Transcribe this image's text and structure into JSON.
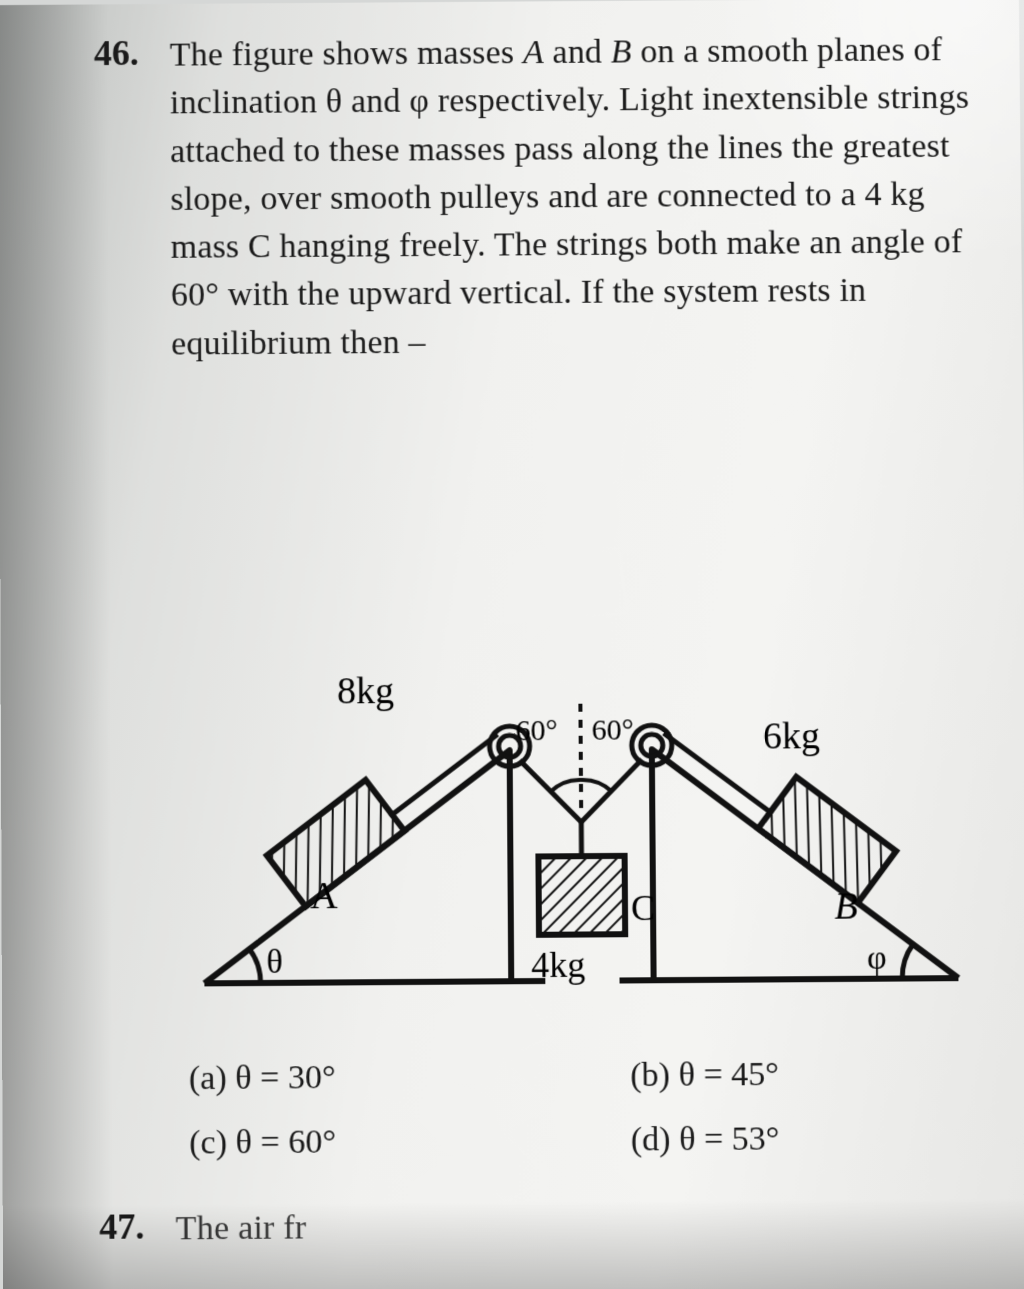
{
  "q46": {
    "number": "46.",
    "text_html": "The figure shows masses <span class=i>A</span> and <span class=i>B</span> on a smooth planes of inclination &theta; and &phi; respectively. Light inextensible strings attached to these masses pass along the lines the greatest slope, over smooth pulleys and are connected to a 4 kg mass C hanging freely. The strings both make an angle of 60&deg; with the upward vertical. If the system rests in equilibrium then &ndash;"
  },
  "figure": {
    "mass_left_label": "8kg",
    "mass_right_label": "6kg",
    "mass_center_label": "4kg",
    "pulley_angle_left": "60°",
    "pulley_angle_right": "60°",
    "block_left_letter": "A",
    "block_right_letter": "B",
    "block_center_letter": "C",
    "angle_left": "θ",
    "angle_right": "φ",
    "colors": {
      "stroke": "#111111",
      "hatch": "#111111",
      "paper": "transparent"
    }
  },
  "options": {
    "a": "(a) θ = 30°",
    "b": "(b) θ = 45°",
    "c": "(c) θ = 60°",
    "d": "(d) θ = 53°"
  },
  "q47": {
    "number": "47.",
    "text": "The air fr"
  }
}
